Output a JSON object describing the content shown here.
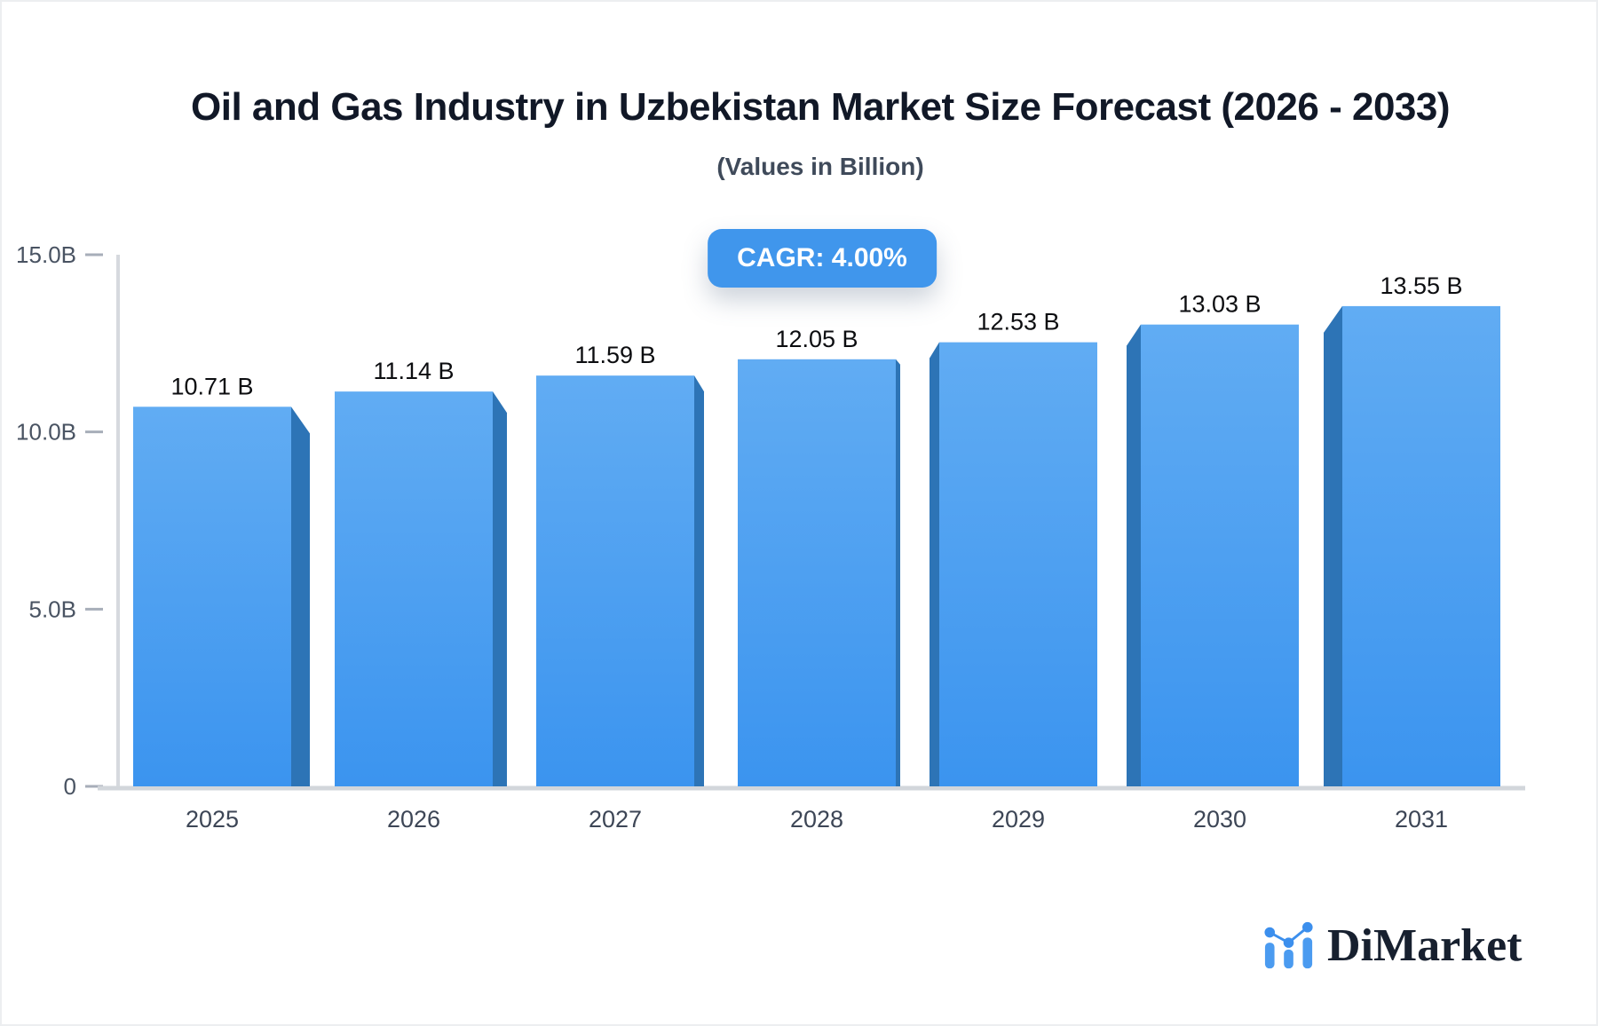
{
  "header": {
    "title": "Oil and Gas Industry in Uzbekistan Market Size Forecast (2026 - 2033)",
    "subtitle": "(Values in Billion)"
  },
  "badge": {
    "label": "CAGR: 4.00%"
  },
  "logo": {
    "brand": "DiMarket"
  },
  "colors": {
    "badge_bg": "#4096ec",
    "bar_gradient_top": "#61acf3",
    "bar_gradient_bottom": "#3b94ef",
    "bar_side": "#2d74b6",
    "axis_line": "#d6d9de",
    "baseline": "#d2d6db",
    "tick_mark": "#a7aeb9",
    "tick_label": "#495362",
    "x_label": "#3d4656",
    "value_label": "#0c0d10",
    "title": "#111827",
    "subtitle": "#3f4a5a",
    "logo_blue": "#4b9bf0",
    "logo_text": "#17202f"
  },
  "chart_data": {
    "type": "bar",
    "title": "Oil and Gas Industry in Uzbekistan Market Size Forecast (2026 - 2033)",
    "subtitle": "(Values in Billion)",
    "categories": [
      "2025",
      "2026",
      "2027",
      "2028",
      "2029",
      "2030",
      "2031"
    ],
    "values": [
      10.71,
      11.14,
      11.59,
      12.05,
      12.53,
      13.03,
      13.55
    ],
    "value_labels": [
      "10.71 B",
      "11.14 B",
      "11.59 B",
      "12.05 B",
      "12.53 B",
      "13.03 B",
      "13.55 B"
    ],
    "xlabel": "",
    "ylabel": "",
    "ylim": [
      0,
      15
    ],
    "y_ticks": [
      {
        "value": 0,
        "label": "0"
      },
      {
        "value": 5,
        "label": "5.0B"
      },
      {
        "value": 10,
        "label": "10.0B"
      },
      {
        "value": 15,
        "label": "15.0B"
      }
    ],
    "grid": false,
    "legend": false,
    "annotation": "CAGR: 4.00%",
    "bar_style": "3d-beveled"
  }
}
